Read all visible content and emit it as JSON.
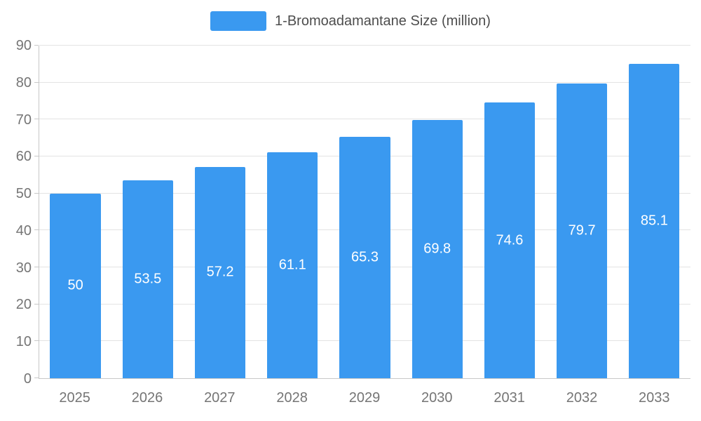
{
  "chart_data": {
    "type": "bar",
    "title": "1-Bromoadamantane Size (million)",
    "categories": [
      "2025",
      "2026",
      "2027",
      "2028",
      "2029",
      "2030",
      "2031",
      "2032",
      "2033"
    ],
    "values": [
      50,
      53.5,
      57.2,
      61.1,
      65.3,
      69.8,
      74.6,
      79.7,
      85.1
    ],
    "xlabel": "",
    "ylabel": "",
    "ylim": [
      0,
      90
    ],
    "ytick_step": 10,
    "grid": true,
    "legend_position": "top-center",
    "bar_color": "#3a99f0",
    "value_label_color": "#ffffff",
    "axis_text_color": "#757575"
  }
}
